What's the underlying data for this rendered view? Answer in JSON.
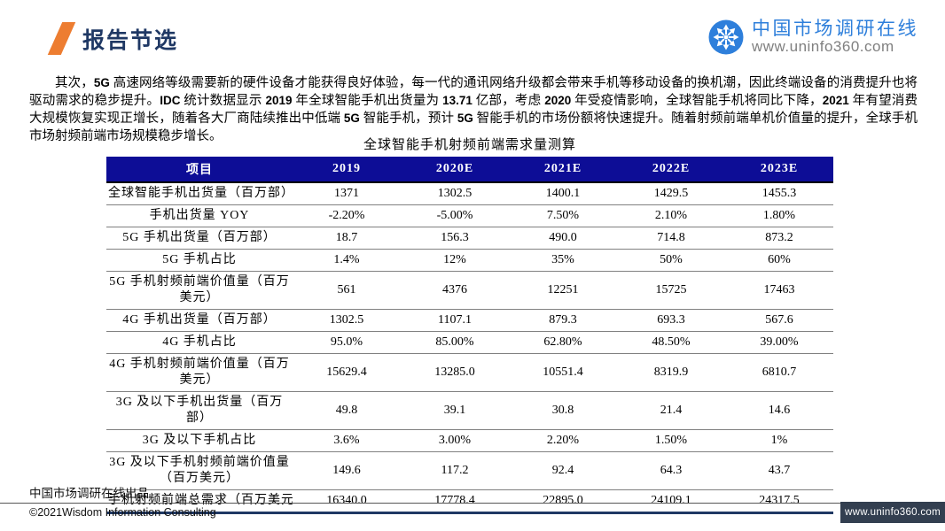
{
  "header": {
    "title": "报告节选"
  },
  "logo": {
    "name": "中国市场调研在线",
    "url": "www.uninfo360.com"
  },
  "paragraph": {
    "segments": [
      {
        "t": "其次，",
        "b": 0
      },
      {
        "t": "5G",
        "b": 1
      },
      {
        "t": " 高速网络等级需要新的硬件设备才能获得良好体验，每一代的通讯网络升级都会带来手机等移动设备的换机潮，因此终端设备的消费提升也将驱动需求的稳步提升。",
        "b": 0
      },
      {
        "t": "IDC",
        "b": 1
      },
      {
        "t": " 统计数据显示 ",
        "b": 0
      },
      {
        "t": "2019",
        "b": 1
      },
      {
        "t": " 年全球智能手机出货量为 ",
        "b": 0
      },
      {
        "t": "13.71",
        "b": 1
      },
      {
        "t": " 亿部，考虑 ",
        "b": 0
      },
      {
        "t": "2020",
        "b": 1
      },
      {
        "t": " 年受疫情影响，全球智能手机将同比下降，",
        "b": 0
      },
      {
        "t": "2021",
        "b": 1
      },
      {
        "t": " 年有望消费大规模恢复实现正增长，随着各大厂商陆续推出中低端 ",
        "b": 0
      },
      {
        "t": "5G",
        "b": 1
      },
      {
        "t": " 智能手机，预计 ",
        "b": 0
      },
      {
        "t": "5G",
        "b": 1
      },
      {
        "t": " 智能手机的市场份额将快速提升。随着射频前端单机价值量的提升，全球手机市场射频前端市场规模稳步增长。",
        "b": 0
      }
    ]
  },
  "table": {
    "title": "全球智能手机射频前端需求量测算",
    "columns": [
      "项目",
      "2019",
      "2020E",
      "2021E",
      "2022E",
      "2023E"
    ],
    "rows": [
      {
        "label": "全球智能手机出货量（百万部）",
        "values": [
          "1371",
          "1302.5",
          "1400.1",
          "1429.5",
          "1455.3"
        ]
      },
      {
        "label": "手机出货量 YOY",
        "values": [
          "-2.20%",
          "-5.00%",
          "7.50%",
          "2.10%",
          "1.80%"
        ]
      },
      {
        "label": "5G 手机出货量（百万部）",
        "values": [
          "18.7",
          "156.3",
          "490.0",
          "714.8",
          "873.2"
        ]
      },
      {
        "label": "5G 手机占比",
        "values": [
          "1.4%",
          "12%",
          "35%",
          "50%",
          "60%"
        ]
      },
      {
        "label": "5G 手机射频前端价值量（百万美元）",
        "values": [
          "561",
          "4376",
          "12251",
          "15725",
          "17463"
        ]
      },
      {
        "label": "4G 手机出货量（百万部）",
        "values": [
          "1302.5",
          "1107.1",
          "879.3",
          "693.3",
          "567.6"
        ]
      },
      {
        "label": "4G 手机占比",
        "values": [
          "95.0%",
          "85.00%",
          "62.80%",
          "48.50%",
          "39.00%"
        ]
      },
      {
        "label": "4G 手机射频前端价值量（百万美元）",
        "values": [
          "15629.4",
          "13285.0",
          "10551.4",
          "8319.9",
          "6810.7"
        ]
      },
      {
        "label": "3G 及以下手机出货量（百万部）",
        "values": [
          "49.8",
          "39.1",
          "30.8",
          "21.4",
          "14.6"
        ]
      },
      {
        "label": "3G 及以下手机占比",
        "values": [
          "3.6%",
          "3.00%",
          "2.20%",
          "1.50%",
          "1%"
        ]
      },
      {
        "label": "3G 及以下手机射频前端价值量（百万美元）",
        "values": [
          "149.6",
          "117.2",
          "92.4",
          "64.3",
          "43.7"
        ]
      },
      {
        "label": "手机射频前端总需求（百万美元）",
        "values": [
          "16340.0",
          "17778.4",
          "22895.0",
          "24109.1",
          "24317.5"
        ]
      }
    ]
  },
  "footer": {
    "producer": "中国市场调研在线出品",
    "copyright": "©2021Wisdom Information Consulting",
    "badge": "www.uninfo360.com"
  },
  "colors": {
    "accent_orange": "#ED7D31",
    "title_navy": "#1F3864",
    "table_header_bg": "#0D0D96",
    "logo_blue": "#2E7FDB",
    "badge_bg": "#333F50"
  }
}
